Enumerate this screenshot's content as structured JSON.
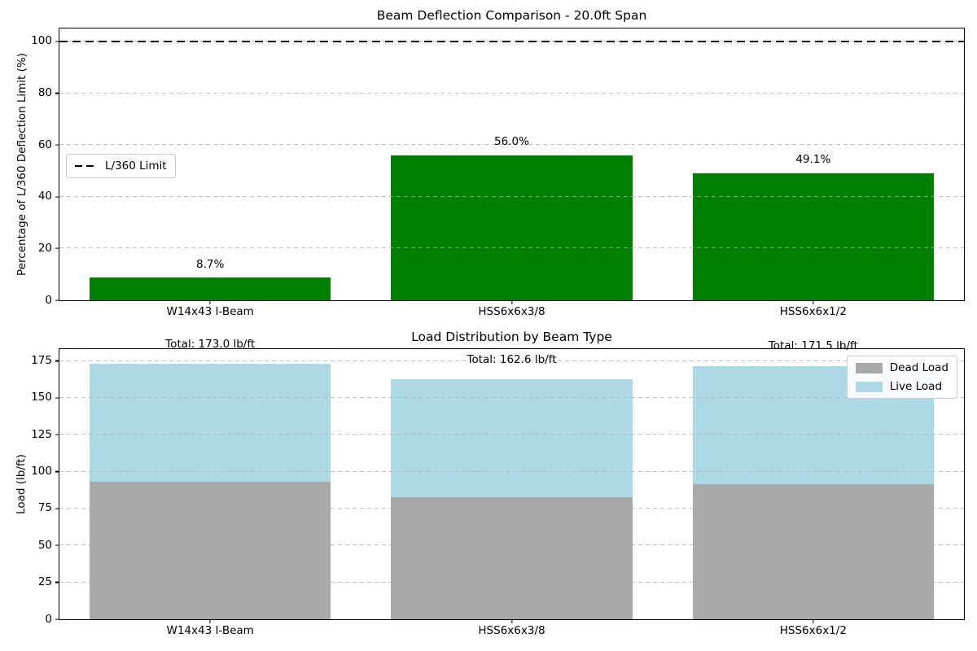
{
  "chart_data": [
    {
      "type": "bar",
      "title": "Beam Deflection Comparison - 20.0ft Span",
      "ylabel": "Percentage of L/360 Deflection Limit (%)",
      "xlabel": "",
      "categories": [
        "W14x43 I-Beam",
        "HSS6x6x3/8",
        "HSS6x6x1/2"
      ],
      "values": [
        8.7,
        56.0,
        49.1
      ],
      "bar_labels": [
        "8.7%",
        "56.0%",
        "49.1%"
      ],
      "bar_color": "#008000",
      "bar_width": 0.8,
      "ylim": [
        0,
        105
      ],
      "yticks": [
        0,
        20,
        40,
        60,
        80,
        100
      ],
      "grid": true,
      "legend_position": "center-left",
      "reference_line": {
        "value": 100,
        "label": "L/360 Limit",
        "color": "#000000",
        "style": "dashed"
      }
    },
    {
      "type": "bar",
      "stacked": true,
      "title": "Load Distribution by Beam Type",
      "ylabel": "Load (lb/ft)",
      "xlabel": "",
      "categories": [
        "W14x43 I-Beam",
        "HSS6x6x3/8",
        "HSS6x6x1/2"
      ],
      "series": [
        {
          "name": "Dead Load",
          "color": "#a9a9a9",
          "values": [
            93.0,
            82.6,
            91.5
          ]
        },
        {
          "name": "Live Load",
          "color": "#add8e6",
          "values": [
            80.0,
            80.0,
            80.0
          ]
        }
      ],
      "totals": [
        173.0,
        162.6,
        171.5
      ],
      "total_labels": [
        "Total: 173.0 lb/ft",
        "Total: 162.6 lb/ft",
        "Total: 171.5 lb/ft"
      ],
      "bar_width": 0.8,
      "ylim": [
        0,
        183
      ],
      "yticks": [
        0,
        25,
        50,
        75,
        100,
        125,
        150,
        175
      ],
      "grid": true,
      "legend_position": "top-right"
    }
  ]
}
